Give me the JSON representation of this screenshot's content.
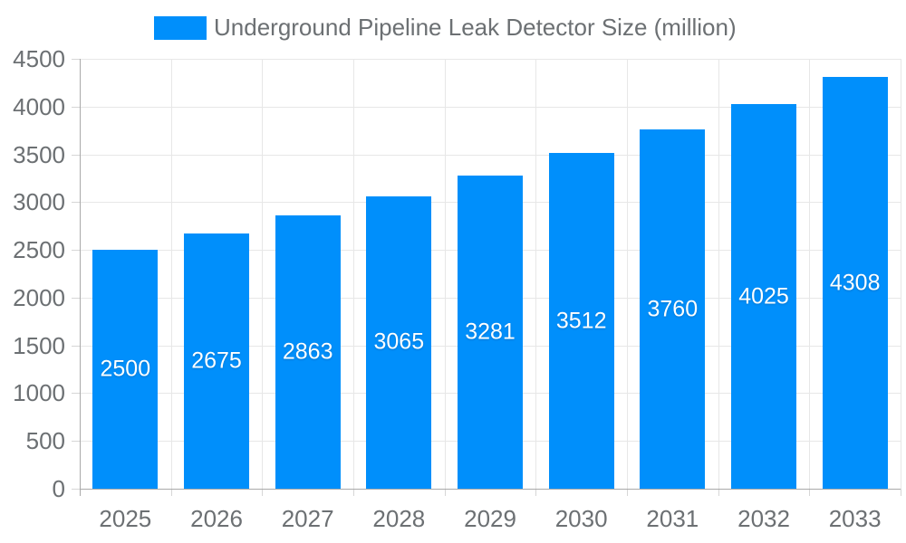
{
  "chart_data": {
    "type": "bar",
    "title": "Underground Pipeline Leak Detector Size (million)",
    "categories": [
      "2025",
      "2026",
      "2027",
      "2028",
      "2029",
      "2030",
      "2031",
      "2032",
      "2033"
    ],
    "values": [
      2500,
      2675,
      2863,
      3065,
      3281,
      3512,
      3760,
      4025,
      4308
    ],
    "series": [
      {
        "name": "Underground Pipeline Leak Detector Size (million)",
        "values": [
          2500,
          2675,
          2863,
          3065,
          3281,
          3512,
          3760,
          4025,
          4308
        ]
      }
    ],
    "xlabel": "",
    "ylabel": "",
    "ylim": [
      0,
      4500
    ],
    "ytick_step": 500,
    "ytick_labels": [
      "0",
      "500",
      "1000",
      "1500",
      "2000",
      "2500",
      "3000",
      "3500",
      "4000",
      "4500"
    ],
    "grid": "on",
    "legend_position": "top",
    "colors": {
      "bar": "#008FFB",
      "grid": "#e7e7e7",
      "axis": "#a9a9a9",
      "tick": "#d6d6d6",
      "label": "#6c7073",
      "value_label": "#ffffff",
      "background": "#ffffff"
    }
  }
}
